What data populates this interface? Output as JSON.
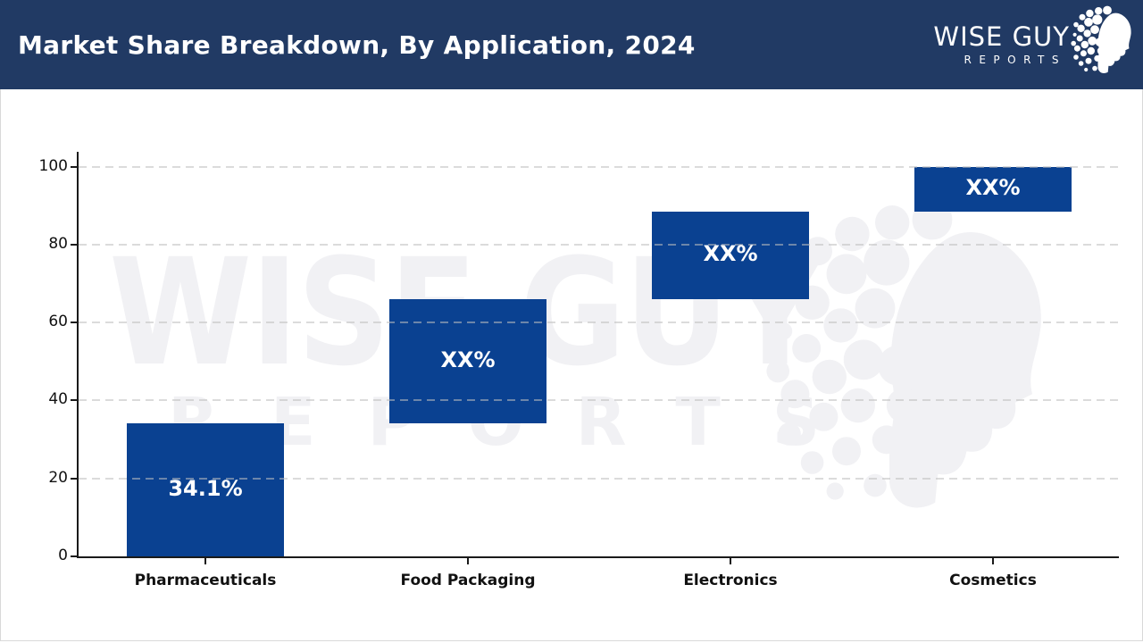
{
  "header": {
    "title": "Market Share Breakdown, By Application, 2024"
  },
  "logo": {
    "wordmark": "WISE GUY",
    "subtext": "REPORTS",
    "head_icon": "dotted-head-profile"
  },
  "watermark": {
    "wordmark": "WISE GUY",
    "subtext": "REPORTS"
  },
  "colors": {
    "header_bg": "#213a64",
    "bar_fill": "#0a4191",
    "bar_label_text": "#ffffff",
    "axis": "#1a1a1a",
    "gridline": "#d9d9d9",
    "watermark": "#f1f1f4",
    "page_bg": "#ffffff"
  },
  "chart_data": {
    "type": "bar",
    "variant": "waterfall",
    "title": "Market Share Breakdown, By Application, 2024",
    "categories": [
      "Pharmaceuticals",
      "Food Packaging",
      "Electronics",
      "Cosmetics"
    ],
    "segments": [
      {
        "category": "Pharmaceuticals",
        "start": 0,
        "end": 34.1,
        "label": "34.1%"
      },
      {
        "category": "Food Packaging",
        "start": 34.1,
        "end": 66,
        "label": "XX%"
      },
      {
        "category": "Electronics",
        "start": 66,
        "end": 88.4,
        "label": "XX%"
      },
      {
        "category": "Cosmetics",
        "start": 88.4,
        "end": 100,
        "label": "XX%"
      }
    ],
    "xlabel": "",
    "ylabel": "",
    "ylim": [
      0,
      104
    ],
    "yticks": [
      0,
      20,
      40,
      60,
      80,
      100
    ],
    "grid": "horizontal-dashed",
    "legend": "none"
  }
}
